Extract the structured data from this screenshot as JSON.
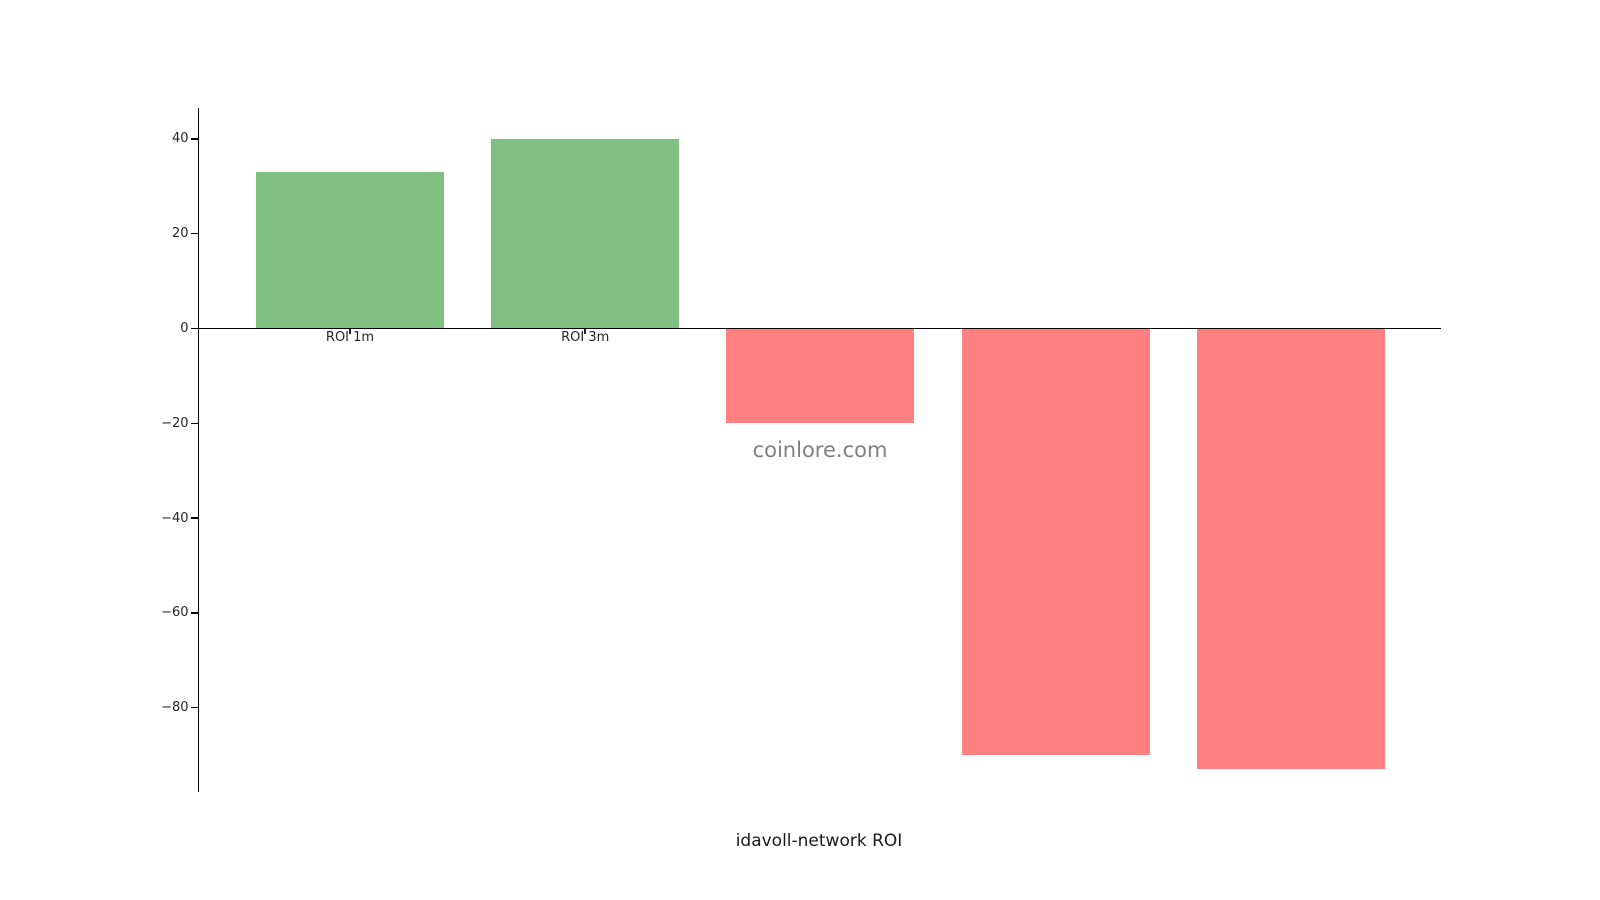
{
  "page": {
    "background_color": "#ffffff"
  },
  "chart_data": {
    "type": "bar",
    "title": "idavoll-network ROI",
    "watermark": "coinlore.com",
    "categories": [
      "ROI 1m",
      "ROI 3m",
      "",
      "",
      ""
    ],
    "values": [
      33,
      40,
      -20,
      -90,
      -93
    ],
    "series": [
      {
        "name": "ROI",
        "values": [
          33,
          40,
          -20,
          -90,
          -93
        ]
      }
    ],
    "visible_category_labels": [
      "ROI 1m",
      "ROI 3m"
    ],
    "yticks": [
      40,
      20,
      0,
      -20,
      -40,
      -60,
      -80
    ],
    "ytick_labels": [
      "40",
      "20",
      "0",
      "−20",
      "−40",
      "−60",
      "−80"
    ],
    "ylim": [
      -97.8,
      46.5
    ],
    "xlabel": "idavoll-network ROI",
    "ylabel": "",
    "grid": false,
    "legend_position": "none",
    "positive_color": "#80c080",
    "negative_color": "#ff8080",
    "axis_color": "#000000",
    "tick_label_color": "#262626",
    "watermark_color": "#808080",
    "note": "x tick labels and tick marks of negative bars are occluded by the red bars"
  }
}
